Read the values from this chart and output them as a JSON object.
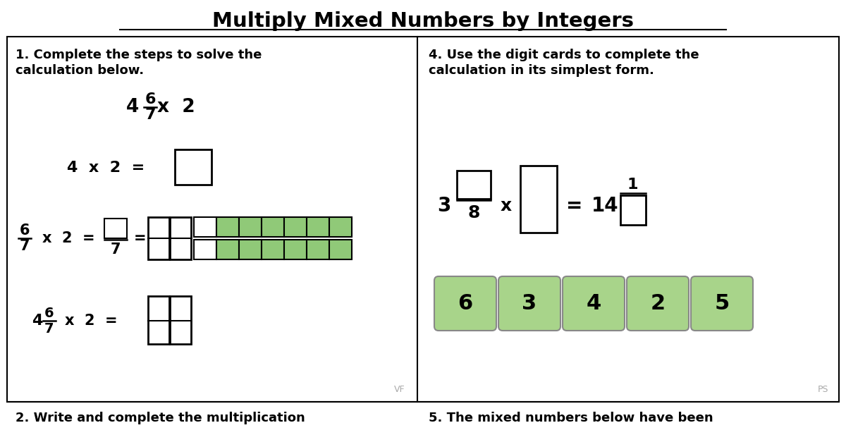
{
  "title": "Multiply Mixed Numbers by Integers",
  "bg_color": "#ffffff",
  "border_color": "#000000",
  "green_fill": "#90c978",
  "green_card": "#a8d48a",
  "card_numbers": [
    "6",
    "3",
    "4",
    "2",
    "5"
  ],
  "bottom_left_text": "2. Write and complete the multiplication",
  "bottom_right_text": "5. The mixed numbers below have been"
}
